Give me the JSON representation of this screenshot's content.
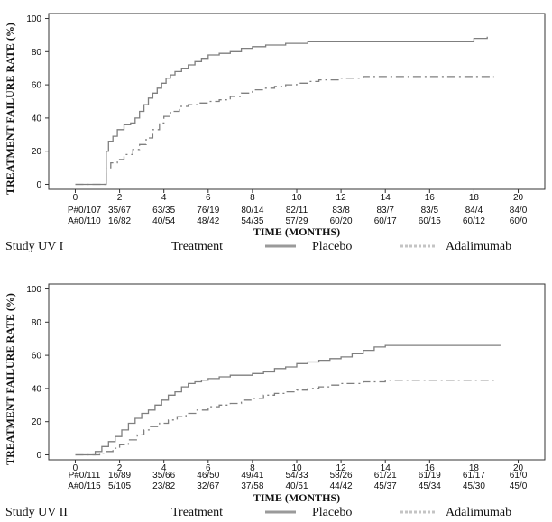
{
  "chart_data": [
    {
      "type": "line",
      "study": "Study UV I",
      "legend_title": "Treatment",
      "xlabel": "TIME (MONTHS)",
      "ylabel": "TREATMENT FAILURE RATE (%)",
      "xlim": [
        -1.2,
        21.2
      ],
      "ylim": [
        -3,
        103
      ],
      "xticks": [
        0,
        2,
        4,
        6,
        8,
        10,
        12,
        14,
        16,
        18,
        20
      ],
      "yticks": [
        0,
        20,
        40,
        60,
        80,
        100
      ],
      "series": [
        {
          "name": "Placebo",
          "style": "solid",
          "color": "#7f7f7f",
          "x": [
            0,
            1.3,
            1.4,
            1.5,
            1.7,
            1.9,
            2.2,
            2.5,
            2.7,
            2.9,
            3.1,
            3.3,
            3.5,
            3.7,
            3.9,
            4.1,
            4.3,
            4.5,
            4.8,
            5.1,
            5.4,
            5.7,
            6.0,
            6.5,
            7.0,
            7.5,
            8.0,
            8.6,
            9.5,
            10.0,
            10.5,
            11.0,
            11.5,
            12.0,
            13.0,
            14.0,
            15.0,
            16.0,
            17.0,
            18.0,
            18.6
          ],
          "y": [
            0,
            0,
            20,
            26,
            29,
            33,
            36,
            37,
            40,
            44,
            48,
            52,
            55,
            58,
            61,
            64,
            66,
            68,
            70,
            72,
            74,
            76,
            78,
            79,
            80,
            82,
            83,
            84,
            85,
            85,
            86,
            86,
            86,
            86,
            86,
            86,
            86,
            86,
            86,
            88,
            89
          ]
        },
        {
          "name": "Adalimumab",
          "style": "dashed",
          "color": "#7f7f7f",
          "x": [
            0,
            1.3,
            1.4,
            1.6,
            1.9,
            2.2,
            2.6,
            2.9,
            3.2,
            3.5,
            3.8,
            4.0,
            4.3,
            4.7,
            5.1,
            5.5,
            6.0,
            6.5,
            7.0,
            7.5,
            8.0,
            8.5,
            9.0,
            9.5,
            10.0,
            10.5,
            11.0,
            11.5,
            12.0,
            13.0,
            14.0,
            15.0,
            16.0,
            17.0,
            18.0,
            18.9
          ],
          "y": [
            0,
            0,
            10,
            13,
            15,
            18,
            21,
            24,
            28,
            33,
            37,
            41,
            44,
            47,
            48,
            49,
            50,
            51,
            53,
            55,
            57,
            58,
            59,
            60,
            61,
            62,
            63,
            63,
            64,
            65,
            65,
            65,
            65,
            65,
            65,
            65
          ]
        }
      ],
      "risk_table": {
        "P": [
          "P#0/107",
          "35/67",
          "63/35",
          "76/19",
          "80/14",
          "82/11",
          "83/8",
          "83/7",
          "83/5",
          "84/4",
          "84/0"
        ],
        "A": [
          "A#0/110",
          "16/82",
          "40/54",
          "48/42",
          "54/35",
          "57/29",
          "60/20",
          "60/17",
          "60/15",
          "60/12",
          "60/0"
        ]
      }
    },
    {
      "type": "line",
      "study": "Study UV II",
      "legend_title": "Treatment",
      "xlabel": "TIME (MONTHS)",
      "ylabel": "TREATMENT FAILURE RATE (%)",
      "xlim": [
        -1.2,
        21.2
      ],
      "ylim": [
        -3,
        103
      ],
      "xticks": [
        0,
        2,
        4,
        6,
        8,
        10,
        12,
        14,
        16,
        18,
        20
      ],
      "yticks": [
        0,
        20,
        40,
        60,
        80,
        100
      ],
      "series": [
        {
          "name": "Placebo",
          "style": "solid",
          "color": "#7f7f7f",
          "x": [
            0,
            0.6,
            0.9,
            1.2,
            1.5,
            1.8,
            2.1,
            2.4,
            2.7,
            3.0,
            3.3,
            3.6,
            3.9,
            4.2,
            4.5,
            4.8,
            5.1,
            5.4,
            5.7,
            6.0,
            6.5,
            7.0,
            7.5,
            8.0,
            8.5,
            9.0,
            9.5,
            10.0,
            10.5,
            11.0,
            11.5,
            12.0,
            12.5,
            13.0,
            13.5,
            14.0,
            15.0,
            16.0,
            17.0,
            18.0,
            19.2
          ],
          "y": [
            0,
            0,
            2,
            5,
            8,
            11,
            15,
            19,
            22,
            25,
            27,
            30,
            33,
            36,
            38,
            41,
            43,
            44,
            45,
            46,
            47,
            48,
            48,
            49,
            50,
            52,
            53,
            55,
            56,
            57,
            58,
            59,
            61,
            63,
            65,
            66,
            66,
            66,
            66,
            66,
            66
          ]
        },
        {
          "name": "Adalimumab",
          "style": "dashed",
          "color": "#7f7f7f",
          "x": [
            0,
            0.8,
            1.1,
            1.4,
            1.7,
            2.0,
            2.4,
            2.8,
            3.1,
            3.4,
            3.8,
            4.2,
            4.6,
            5.0,
            5.5,
            6.0,
            6.5,
            7.0,
            7.5,
            8.0,
            8.5,
            9.0,
            9.5,
            10.0,
            10.5,
            11.0,
            11.5,
            12.0,
            13.0,
            14.0,
            15.0,
            16.0,
            17.0,
            18.0,
            19.0
          ],
          "y": [
            0,
            0,
            1,
            2,
            4,
            6,
            9,
            12,
            15,
            17,
            19,
            21,
            23,
            25,
            27,
            29,
            30,
            31,
            33,
            34,
            36,
            37,
            38,
            39,
            40,
            41,
            42,
            43,
            44,
            45,
            45,
            45,
            45,
            45,
            45
          ]
        }
      ],
      "risk_table": {
        "P": [
          "P#0/111",
          "16/89",
          "35/66",
          "46/50",
          "49/41",
          "54/33",
          "58/26",
          "61/21",
          "61/19",
          "61/17",
          "61/0"
        ],
        "A": [
          "A#0/115",
          "5/105",
          "23/82",
          "32/67",
          "37/58",
          "40/51",
          "44/42",
          "45/37",
          "45/34",
          "45/30",
          "45/0"
        ]
      }
    }
  ]
}
